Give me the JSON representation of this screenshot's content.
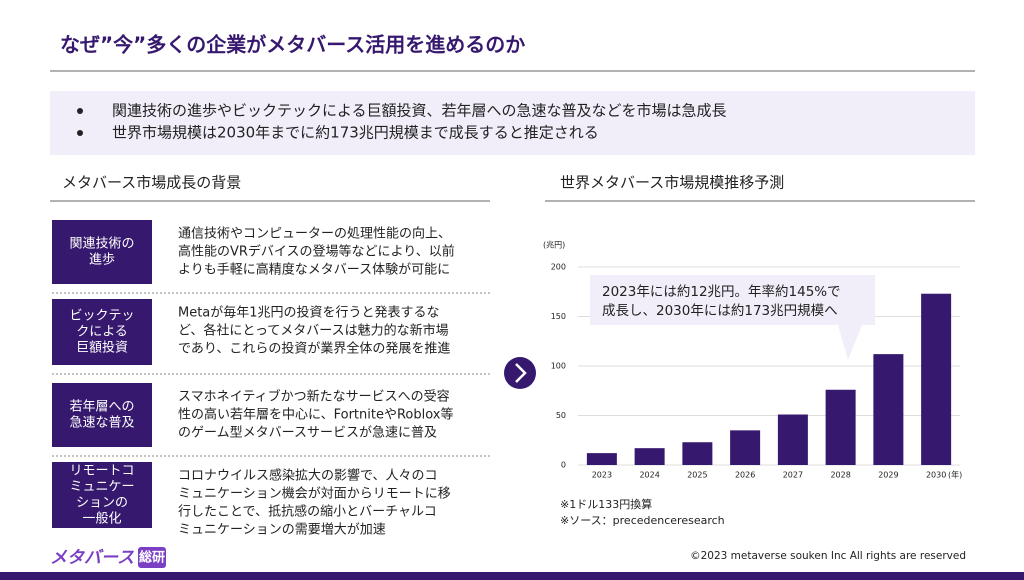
{
  "header": {
    "title": "なぜ”今”多くの企業がメタバース活用を進めるのか"
  },
  "bullets": [
    "関連技術の進歩やビックテックによる巨額投資、若年層への急速な普及などを市場は急成長",
    "世界市場規模は2030年までに約173兆円規模まで成長すると推定される"
  ],
  "left": {
    "heading": "メタバース市場成長の背景",
    "items": [
      {
        "label": [
          "関連技術の",
          "進歩"
        ],
        "text": [
          "通信技術やコンピューターの処理性能の向上、",
          "高性能のVRデバイスの登場等などにより、以前",
          "よりも手軽に高精度なメタバース体験が可能に"
        ]
      },
      {
        "label": [
          "ビックテッ",
          "クによる",
          "巨額投資"
        ],
        "text": [
          "Metaが毎年1兆円の投資を行うと発表するな",
          "ど、各社にとってメタバースは魅力的な新市場",
          "であり、これらの投資が業界全体の発展を推進"
        ]
      },
      {
        "label": [
          "若年層への",
          "急速な普及"
        ],
        "text": [
          "スマホネイティブかつ新たなサービスへの受容",
          "性の高い若年層を中心に、FortniteやRoblox等",
          "のゲーム型メタバースサービスが急速に普及"
        ]
      },
      {
        "label": [
          "リモートコ",
          "ミュニケー",
          "ションの",
          "一般化"
        ],
        "text": [
          "コロナウイルス感染拡大の影響で、人々のコ",
          "ミュニケーション機会が対面からリモートに移",
          "行したことで、抵抗感の縮小とバーチャルコ",
          "ミュニケーションの需要増大が加速"
        ]
      }
    ]
  },
  "chart_data": {
    "type": "bar",
    "title": "世界メタバース市場規模推移予測",
    "y_label": "(兆円)",
    "x_label": "(年)",
    "categories": [
      "2023",
      "2024",
      "2025",
      "2026",
      "2027",
      "2028",
      "2029",
      "2030"
    ],
    "values": [
      12,
      17,
      23,
      35,
      51,
      76,
      112,
      173
    ],
    "color": "#36196f",
    "ylim": [
      0,
      200
    ],
    "yticks": [
      0,
      50,
      100,
      150,
      200
    ],
    "grid": true,
    "annotation": [
      "2023年には約12兆円。年率約145%で",
      "成長し、2030年には約173兆円規模へ"
    ],
    "notes": [
      "※1ドル133円換算",
      "※ソース：precedenceresearch"
    ]
  },
  "footer": {
    "copyright": "©2023 metaverse souken Inc All rights are reserved",
    "logo": [
      "メタバース",
      "総研"
    ]
  }
}
